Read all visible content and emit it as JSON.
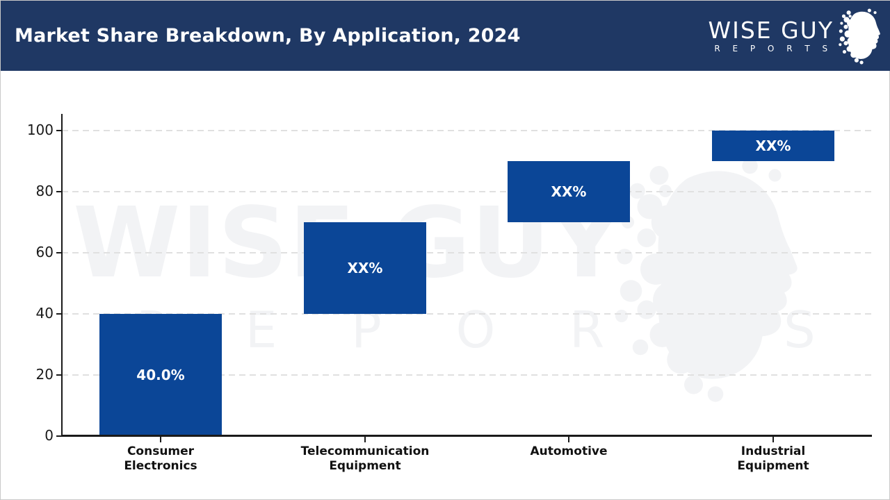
{
  "header": {
    "title": "Market Share Breakdown, By Application, 2024",
    "bg_color": "#1f3864",
    "logo": {
      "line1": "WISE GUY",
      "line2": "R E P O R T S"
    }
  },
  "watermark": {
    "line1": "WISE GUY",
    "line2": "R E P O R T S"
  },
  "chart_data": {
    "type": "bar",
    "subtype": "waterfall",
    "title": "Market Share Breakdown, By Application, 2024",
    "categories": [
      [
        "Consumer",
        "Electronics"
      ],
      [
        "Telecommunication",
        "Equipment"
      ],
      [
        "Automotive"
      ],
      [
        "Industrial",
        "Equipment"
      ]
    ],
    "segments": [
      {
        "start": 0,
        "end": 40,
        "value": 40,
        "label": "40.0%"
      },
      {
        "start": 40,
        "end": 70,
        "value": 30,
        "label": "XX%"
      },
      {
        "start": 70,
        "end": 90,
        "value": 20,
        "label": "XX%"
      },
      {
        "start": 90,
        "end": 100,
        "value": 10,
        "label": "XX%"
      }
    ],
    "bar_labels": [
      "40.0%",
      "XX%",
      "XX%",
      "XX%"
    ],
    "y_ticks": [
      0,
      20,
      40,
      60,
      80,
      100
    ],
    "ylim": [
      0,
      105
    ],
    "xlabel": "",
    "ylabel": "",
    "bar_color": "#0b4697",
    "grid": "horizontal-dashed",
    "gridline_color": "#e0e0e0",
    "legend": "none"
  }
}
